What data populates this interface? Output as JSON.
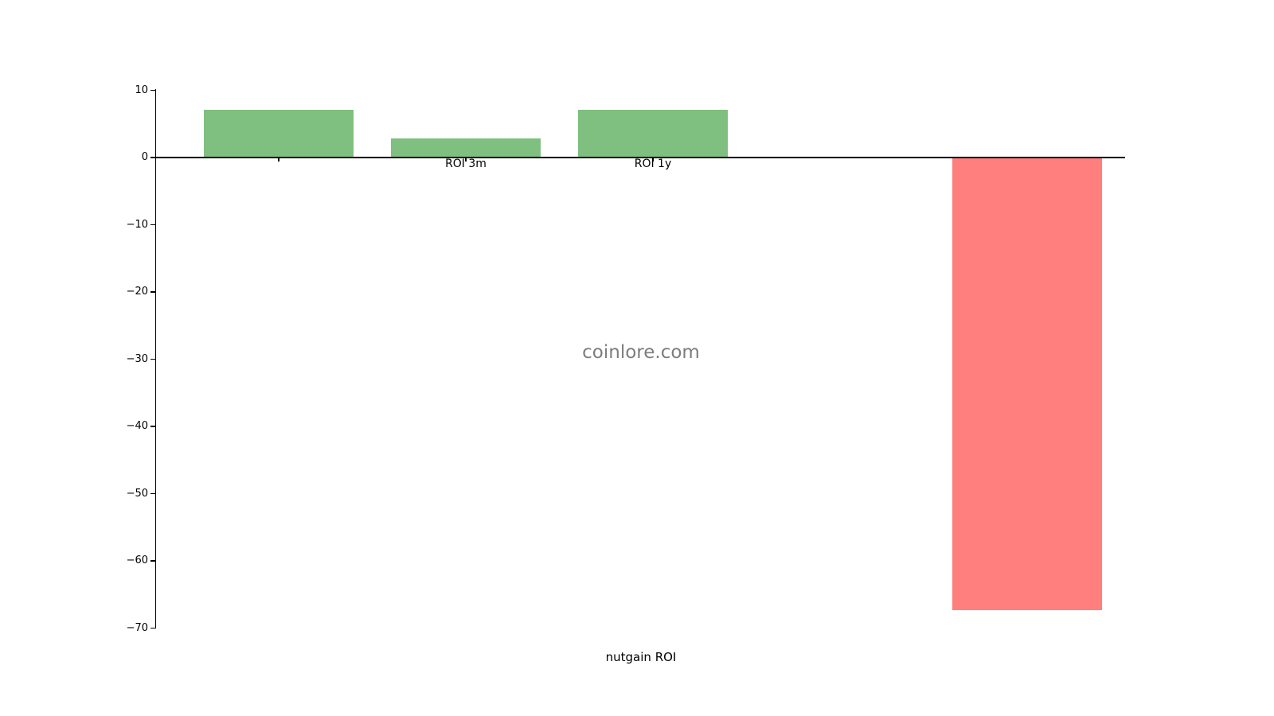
{
  "chart_data": {
    "type": "bar",
    "title": "",
    "xlabel": "nutgain ROI",
    "ylabel": "",
    "ylim": [
      -70,
      10
    ],
    "grid": false,
    "legend": null,
    "watermark": "coinlore.com",
    "categories": [
      "",
      "ROI 3m",
      "ROI 1y",
      "",
      ""
    ],
    "bars": [
      {
        "slot": 0,
        "label": "",
        "value": 7,
        "color": "#7fbf7f"
      },
      {
        "slot": 1,
        "label": "ROI 3m",
        "value": 2.8,
        "color": "#7fbf7f"
      },
      {
        "slot": 2,
        "label": "ROI 1y",
        "value": 7,
        "color": "#7fbf7f"
      },
      {
        "slot": 4,
        "label": "",
        "value": -67.3,
        "color": "#ff7f7f"
      }
    ],
    "yticks": [
      10,
      0,
      -10,
      -20,
      -30,
      -40,
      -50,
      -60,
      -70
    ],
    "ytick_labels": [
      "10",
      "0",
      "−10",
      "−20",
      "−30",
      "−40",
      "−50",
      "−60",
      "−70"
    ],
    "xticks": [
      {
        "slot": 0,
        "label": ""
      },
      {
        "slot": 1,
        "label": "ROI 3m"
      },
      {
        "slot": 2,
        "label": "ROI 1y"
      }
    ],
    "colors": {
      "positive": "#7fbf7f",
      "negative": "#ff7f7f",
      "axis": "#000000",
      "watermark": "#7d7d7d",
      "background": "#ffffff"
    }
  }
}
